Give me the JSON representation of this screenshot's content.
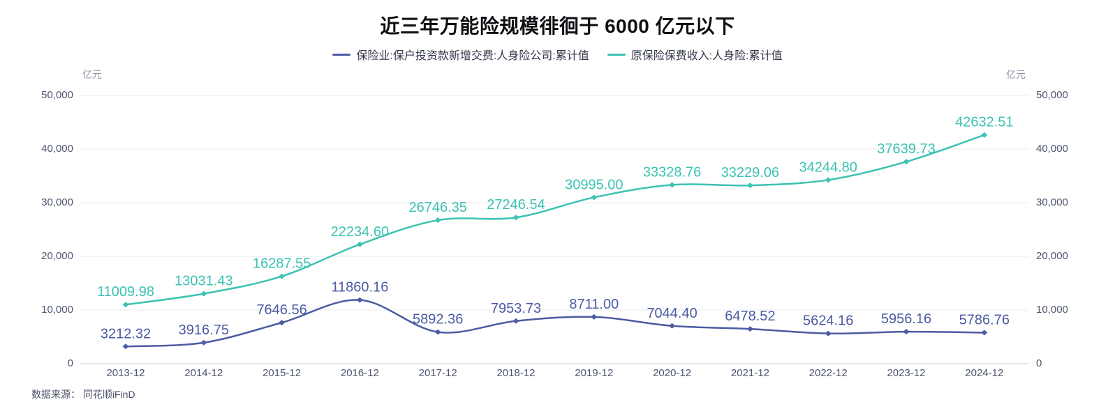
{
  "title": "近三年万能险规模徘徊于 6000 亿元以下",
  "source": "数据来源： 同花顺iFinD",
  "axis_unit_left": "亿元",
  "axis_unit_right": "亿元",
  "colors": {
    "series_investment": "#4c5ba3",
    "series_premium": "#3bc2b1",
    "grid": "#e9ebf2",
    "axis_line": "#c3c7d9",
    "tick_text": "#4d5470",
    "unit_text": "#9298ab",
    "title_text": "#0f0f14",
    "legend_text": "#32364a",
    "source_text": "#4a4f66",
    "background": "#ffffff"
  },
  "chart_data": {
    "type": "line",
    "categories": [
      "2013-12",
      "2014-12",
      "2015-12",
      "2016-12",
      "2017-12",
      "2018-12",
      "2019-12",
      "2020-12",
      "2021-12",
      "2022-12",
      "2023-12",
      "2024-12"
    ],
    "series": [
      {
        "name": "保险业:保户投资款新增交费:人身险公司:累计值",
        "color": "#4c5ba3",
        "values": [
          3212.32,
          3916.75,
          7646.56,
          11860.16,
          5892.36,
          7953.73,
          8711.0,
          7044.4,
          6478.52,
          5624.16,
          5956.16,
          5786.76
        ]
      },
      {
        "name": "原保险保费收入:人身险:累计值",
        "color": "#3bc2b1",
        "values": [
          11009.98,
          13031.43,
          16287.55,
          22234.6,
          26746.35,
          27246.54,
          30995.0,
          33328.76,
          33229.06,
          34244.8,
          37639.73,
          42632.51
        ]
      }
    ],
    "ylabel": "亿元",
    "ylim": [
      0,
      50000
    ],
    "yticks": [
      0,
      10000,
      20000,
      30000,
      40000,
      50000
    ],
    "ytick_labels": [
      "0",
      "10,000",
      "20,000",
      "30,000",
      "40,000",
      "50,000"
    ],
    "grid": true,
    "legend_position": "top",
    "data_labels": true,
    "dual_y_axis": true
  }
}
